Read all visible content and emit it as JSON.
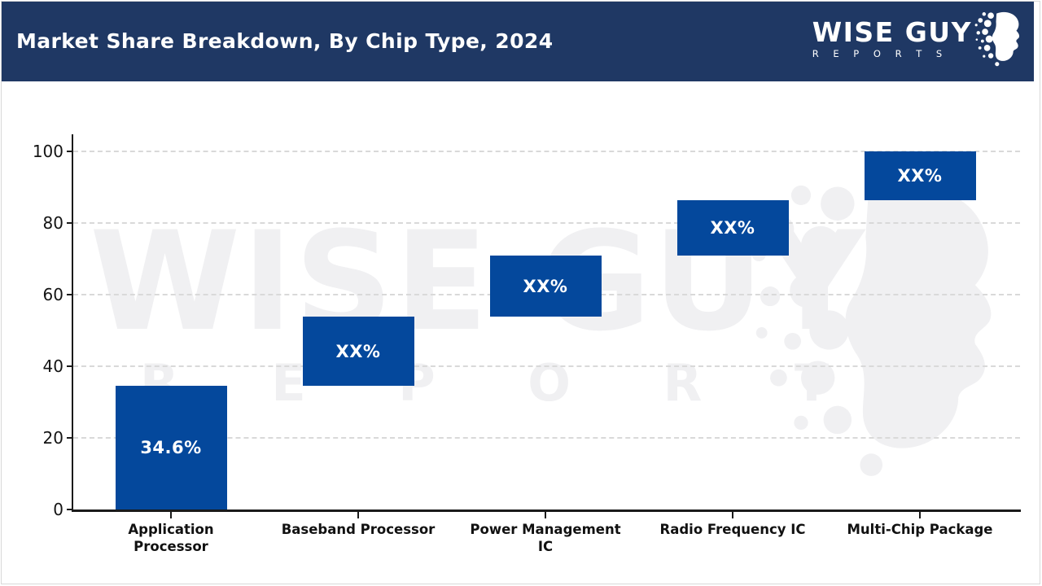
{
  "header": {
    "title": "Market Share Breakdown, By Chip Type, 2024",
    "logo": {
      "name": "WISE GUY",
      "sub": "R E P O R T S"
    }
  },
  "watermark": {
    "line1": "WISE GUY",
    "line2": "R E P O R T S"
  },
  "colors": {
    "header_bg": "#1f3864",
    "bar": "#04489c",
    "bar_label": "#ffffff",
    "grid": "#d9d9d9",
    "axis": "#1a1a1a",
    "watermark": "#f0f0f2"
  },
  "chart_data": {
    "type": "bar",
    "subtype": "waterfall",
    "title": "Market Share Breakdown, By Chip Type, 2024",
    "categories": [
      "Application Processor",
      "Baseband Processor",
      "Power Management IC",
      "Radio Frequency IC",
      "Multi-Chip Package"
    ],
    "categories_display": [
      [
        "Application",
        "Processor"
      ],
      [
        "Baseband Processor"
      ],
      [
        "Power Management",
        "IC"
      ],
      [
        "Radio Frequency IC"
      ],
      [
        "Multi-Chip Package"
      ]
    ],
    "series": [
      {
        "name": "Market share (%)",
        "segments": [
          {
            "start": 0,
            "end": 34.6,
            "label": "34.6%"
          },
          {
            "start": 34.6,
            "end": 53.8,
            "label": "XX%"
          },
          {
            "start": 53.8,
            "end": 70.9,
            "label": "XX%"
          },
          {
            "start": 70.9,
            "end": 86.3,
            "label": "XX%"
          },
          {
            "start": 86.3,
            "end": 100,
            "label": "XX%"
          }
        ]
      }
    ],
    "ylim": [
      0,
      100
    ],
    "yticks": [
      0,
      20,
      40,
      60,
      80,
      100
    ],
    "xlabel": "",
    "ylabel": "",
    "grid": "horizontal-dashed",
    "legend": "none"
  }
}
